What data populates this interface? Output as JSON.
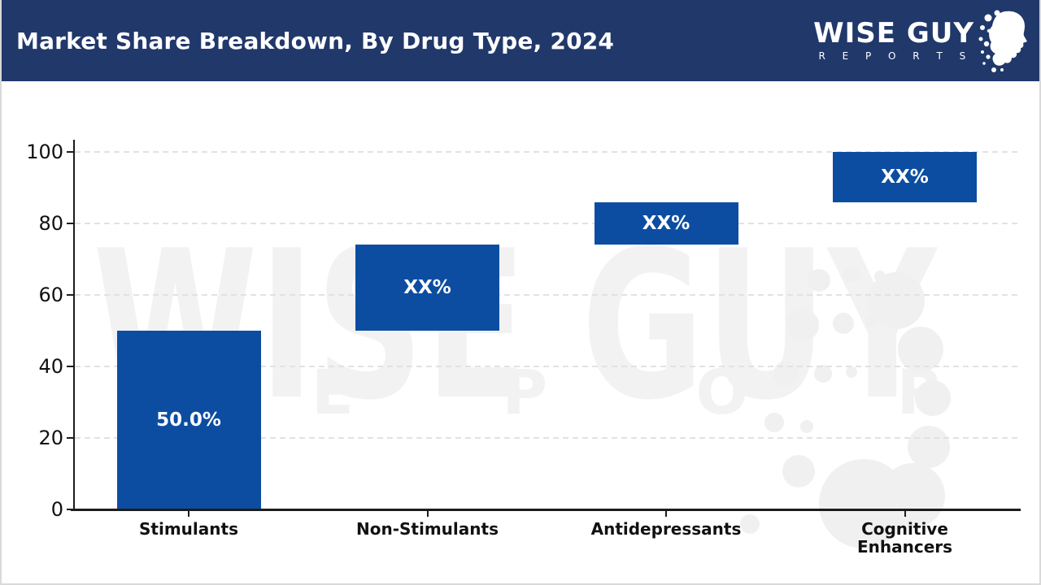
{
  "header": {
    "title": "Market Share Breakdown, By Drug Type, 2024",
    "logo": {
      "primary": "WISE GUY",
      "secondary": "R E P O R T S"
    }
  },
  "watermark": {
    "primary": "WISE GUY",
    "secondary": "R E P O R T S"
  },
  "chart_data": {
    "type": "bar",
    "subtype": "waterfall",
    "title": "Market Share Breakdown, By Drug Type, 2024",
    "categories": [
      "Stimulants",
      "Non-Stimulants",
      "Antidepressants",
      "Cognitive Enhancers"
    ],
    "categories_display": [
      "Stimulants",
      "Non-Stimulants",
      "Antidepressants",
      "Cognitive\nEnhancers"
    ],
    "series": [
      {
        "name": "Market share (%)",
        "segments": [
          {
            "category": "Stimulants",
            "start": 0,
            "end": 50,
            "label": "50.0%"
          },
          {
            "category": "Non-Stimulants",
            "start": 50,
            "end": 74,
            "label": "XX%"
          },
          {
            "category": "Antidepressants",
            "start": 74,
            "end": 86,
            "label": "XX%"
          },
          {
            "category": "Cognitive Enhancers",
            "start": 86,
            "end": 100,
            "label": "XX%"
          }
        ]
      }
    ],
    "ylim": [
      0,
      100
    ],
    "yticks": [
      0,
      20,
      40,
      60,
      80,
      100
    ],
    "xlabel": "",
    "ylabel": "",
    "legend": false,
    "grid": {
      "horizontal": true,
      "style": "dashed"
    }
  },
  "colors": {
    "header_bg": "#21386b",
    "bar": "#0c4da2",
    "bar_label": "#ffffff",
    "axis": "#1c1c1c",
    "grid": "#e2e2e2",
    "watermark": "#f2f2f2",
    "frame_border": "#d9d9d9"
  },
  "icons": {
    "logo_head": "wiseguy-dotted-head-icon",
    "watermark_head": "wiseguy-dotted-head-watermark-icon"
  }
}
